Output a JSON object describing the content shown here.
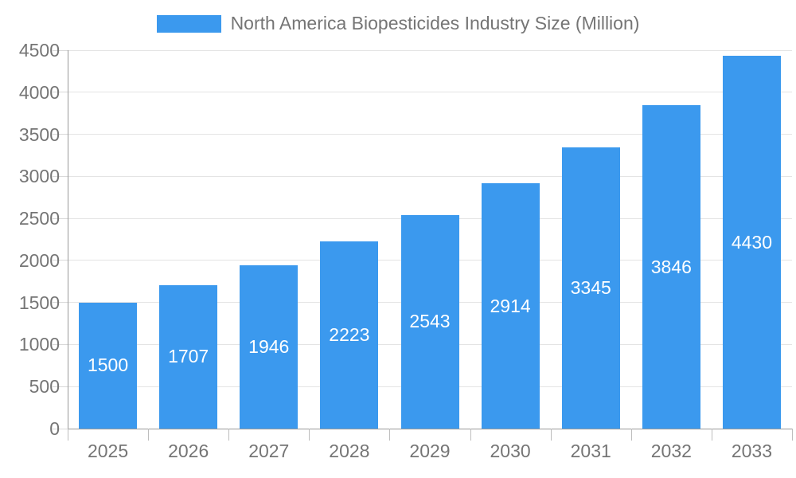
{
  "chart_data": {
    "type": "bar",
    "title": "North America Biopesticides Industry Size (Million)",
    "legend": {
      "position": "top",
      "entries": [
        "North America Biopesticides Industry Size (Million)"
      ]
    },
    "categories": [
      "2025",
      "2026",
      "2027",
      "2028",
      "2029",
      "2030",
      "2031",
      "2032",
      "2033"
    ],
    "series": [
      {
        "name": "North America Biopesticides Industry Size (Million)",
        "values": [
          1500,
          1707,
          1946,
          2223,
          2543,
          2914,
          3345,
          3846,
          4430
        ]
      }
    ],
    "data_labels_shown": true,
    "data_label_position": "inside-center",
    "xlabel": "",
    "ylabel": "",
    "ylim": [
      0,
      4500
    ],
    "ytick_step": 500,
    "ytick_labels": [
      "0",
      "500",
      "1000",
      "1500",
      "2000",
      "2500",
      "3000",
      "3500",
      "4000",
      "4500"
    ],
    "grid": true,
    "colors": {
      "bar": "#3b99ee",
      "bar_label_text": "#ffffff",
      "axis_text": "#757575",
      "gridline": "#e4e4e4",
      "axis_line": "#999999",
      "tick": "#bdbdbd"
    }
  }
}
